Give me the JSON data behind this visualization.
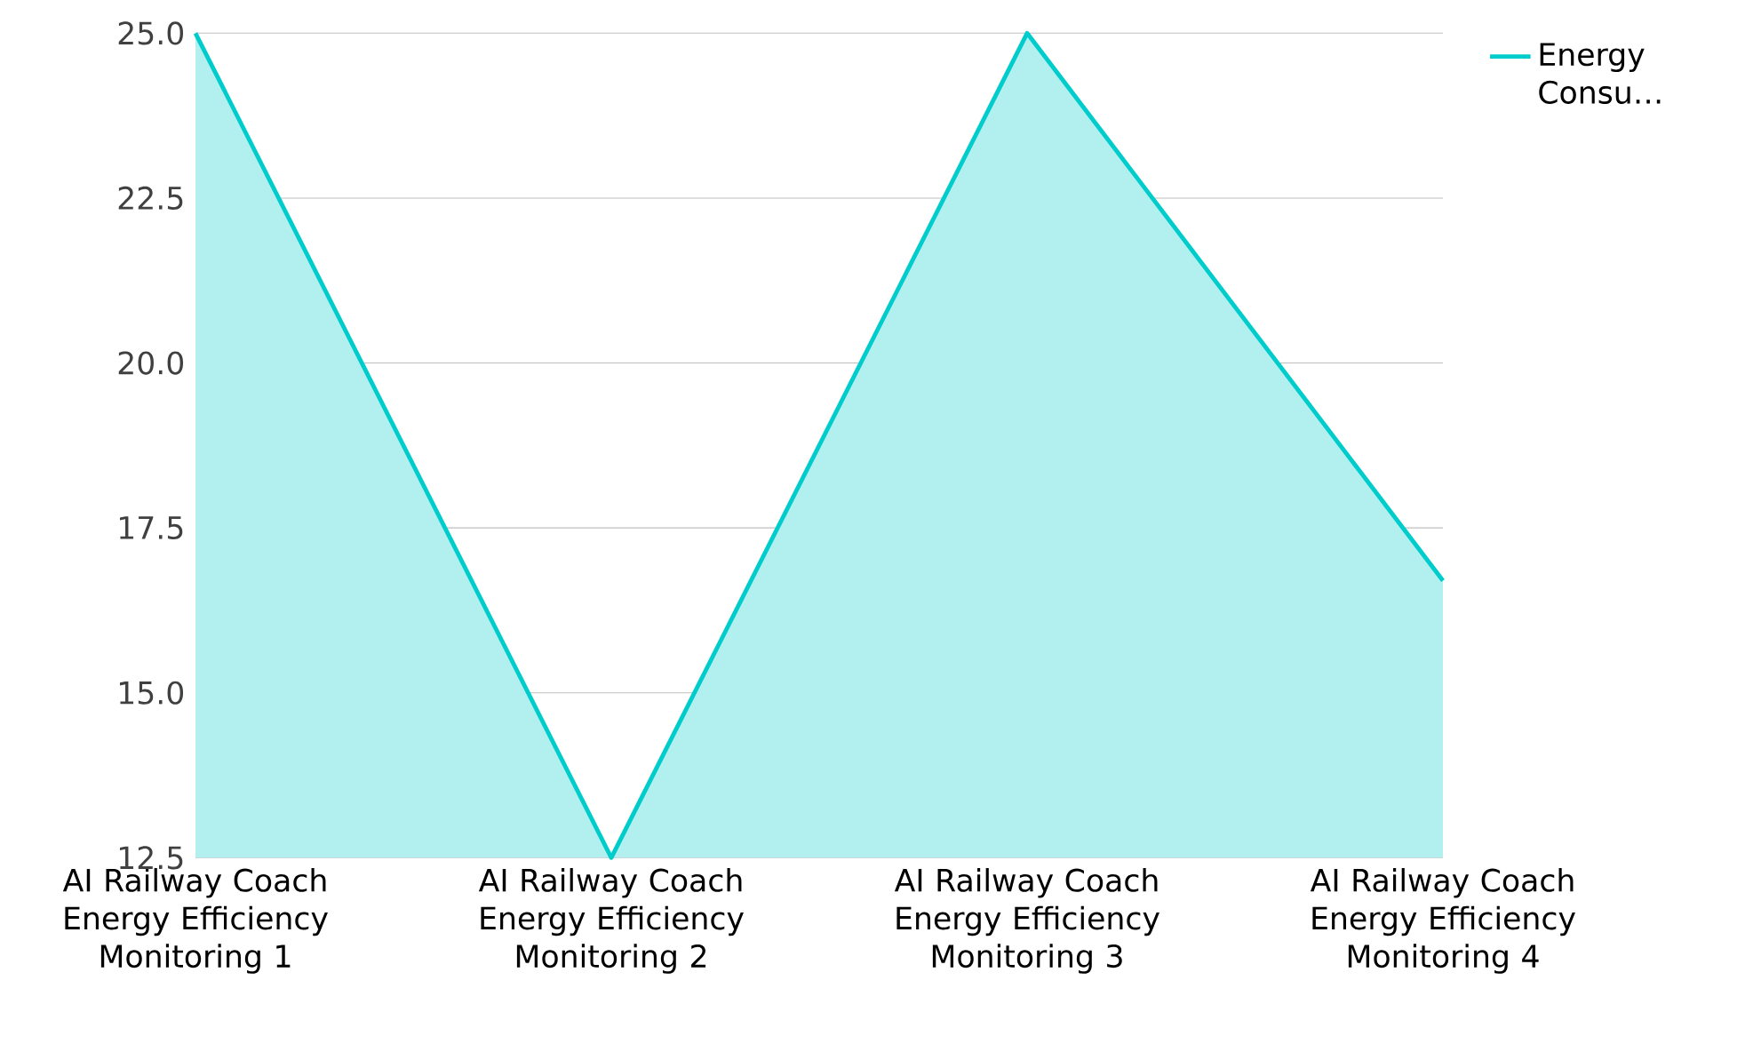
{
  "chart_data": {
    "type": "area",
    "categories": [
      "AI Railway Coach Energy Efficiency Monitoring 1",
      "AI Railway Coach Energy Efficiency Monitoring 2",
      "AI Railway Coach Energy Efficiency Monitoring 3",
      "AI Railway Coach Energy Efficiency Monitoring 4"
    ],
    "series": [
      {
        "name": "Energy Consu…",
        "color": "#00cccc",
        "values": [
          25.0,
          12.5,
          25.0,
          16.7
        ]
      }
    ],
    "ylim": [
      12.5,
      25.0
    ],
    "yticks": [
      12.5,
      {
        "value": 15,
        "label": "15.0"
      },
      17.5,
      {
        "value": 20,
        "label": "20.0"
      },
      22.5,
      {
        "value": 25,
        "label": "25.0"
      }
    ],
    "grid": "y",
    "legend": "top right"
  }
}
